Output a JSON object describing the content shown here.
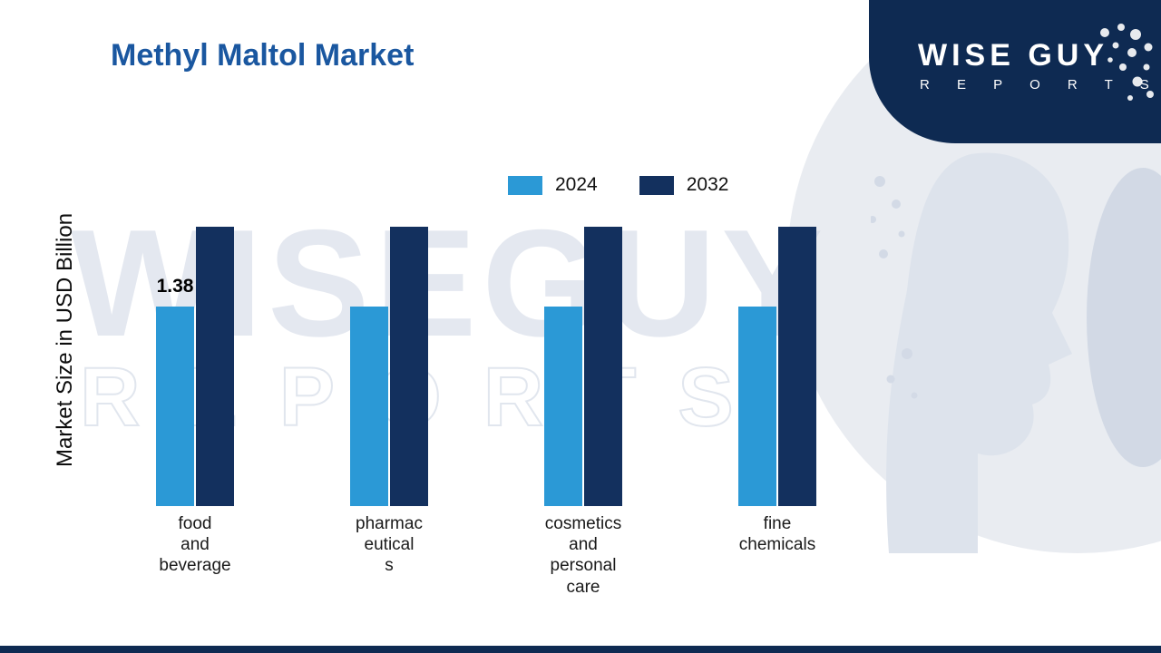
{
  "title": "Methyl Maltol Market",
  "logo": {
    "wordmark": "WISE GUY",
    "subtitle": "R E P O R T S"
  },
  "watermark": {
    "line1": "WISEGUY",
    "line2": "REPORTS"
  },
  "chart_data": {
    "type": "bar",
    "title": "Methyl Maltol Market",
    "xlabel": "",
    "ylabel": "Market Size in USD Billion",
    "categories": [
      "food and beverage",
      "pharmaceuticals",
      "cosmetics and personal care",
      "fine chemicals"
    ],
    "category_display": [
      "food\nand\nbeverage",
      "pharmac\neutical\ns",
      "cosmetics\nand\npersonal\ncare",
      "fine\nchemicals"
    ],
    "series": [
      {
        "name": "2024",
        "color": "#2b99d6",
        "values": [
          1.38,
          1.38,
          1.38,
          1.38
        ]
      },
      {
        "name": "2032",
        "color": "#13305e",
        "values": [
          1.93,
          1.93,
          1.93,
          1.93
        ]
      }
    ],
    "data_labels": [
      [
        "1.38",
        "",
        "",
        ""
      ],
      [
        "",
        "",
        "",
        ""
      ]
    ],
    "legend_position": "top-center",
    "grid": false,
    "ylim": [
      0,
      2.2
    ]
  },
  "colors": {
    "title": "#1a57a0",
    "accent_navy": "#0e2a52",
    "bar_2024": "#2b99d6",
    "bar_2032": "#13305e",
    "background_circle": "#e9ecf1",
    "bottom_bar": "#0e2a52"
  }
}
